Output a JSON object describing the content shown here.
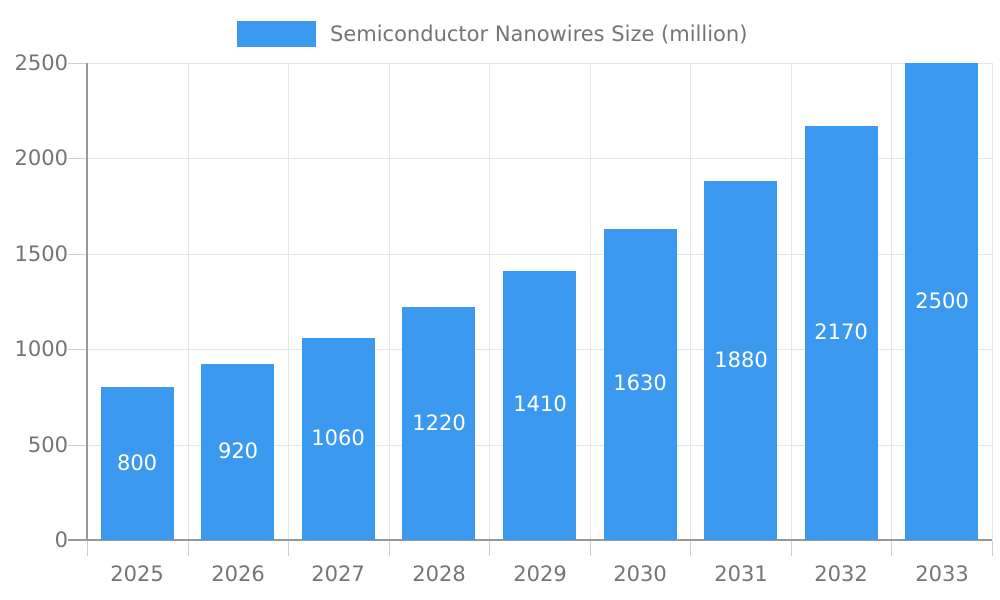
{
  "legend": {
    "label": "Semiconductor Nanowires Size (million)"
  },
  "chart_data": {
    "type": "bar",
    "title": "Semiconductor Nanowires Size (million)",
    "series_name": "Semiconductor Nanowires Size (million)",
    "categories": [
      "2025",
      "2026",
      "2027",
      "2028",
      "2029",
      "2030",
      "2031",
      "2032",
      "2033"
    ],
    "values": [
      800,
      920,
      1060,
      1220,
      1410,
      1630,
      1880,
      2170,
      2500
    ],
    "value_labels": [
      "800",
      "920",
      "1060",
      "1220",
      "1410",
      "1630",
      "1880",
      "2170",
      "2500"
    ],
    "xlabel": "",
    "ylabel": "",
    "ylim": [
      0,
      2500
    ],
    "yticks": [
      0,
      500,
      1000,
      1500,
      2000,
      2500
    ],
    "ytick_labels": [
      "0",
      "500",
      "1000",
      "1500",
      "2000",
      "2500"
    ],
    "grid": true,
    "legend_position": "top",
    "value_labels_inside_bars": true
  },
  "colors": {
    "bar": "#3b99f0",
    "value_label": "#ffffff",
    "axis_text": "#757575",
    "legend_text": "#757575",
    "grid_line": "#e6e6e6",
    "tick_line": "#cfcfcf",
    "axis_line": "#999999",
    "background": "#ffffff"
  }
}
